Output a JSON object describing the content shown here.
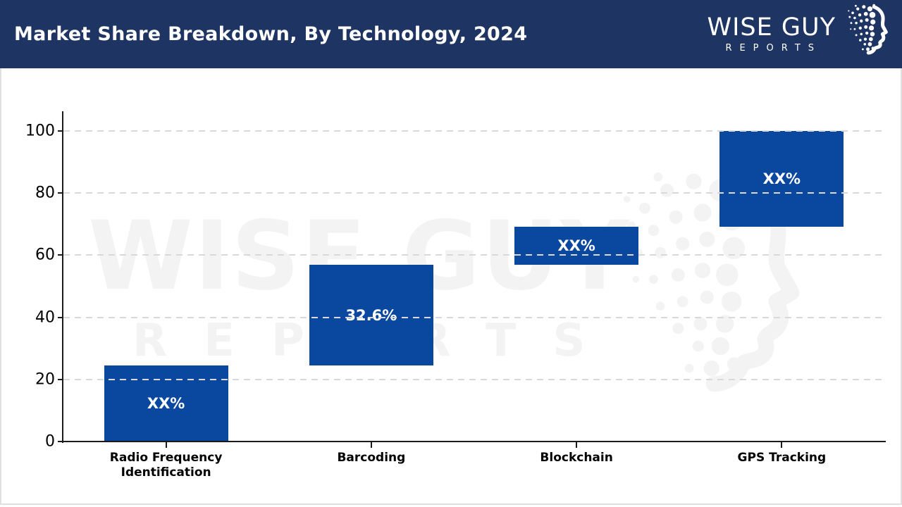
{
  "header": {
    "title": "Market Share Breakdown, By Technology, 2024",
    "logo": {
      "name": "WISE GUY",
      "sub": "REPORTS"
    }
  },
  "watermark": {
    "name": "WISE GUY",
    "sub": "REPORTS"
  },
  "colors": {
    "header_bg": "#1e3462",
    "bar": "#0a48a0",
    "bar_label": "#ffffff",
    "grid": "#d9d9d9",
    "axis": "#1a1a1a",
    "watermark": "#f3f3f3"
  },
  "chart_data": {
    "type": "bar",
    "variant": "waterfall",
    "title": "Market Share Breakdown, By Technology, 2024",
    "xlabel": "",
    "ylabel": "",
    "ylim": [
      0,
      106
    ],
    "yticks": [
      0,
      20,
      40,
      60,
      80,
      100
    ],
    "grid": true,
    "grid_style": "dashed",
    "legend": false,
    "categories": [
      "Radio Frequency\nIdentification",
      "Barcoding",
      "Blockchain",
      "GPS Tracking"
    ],
    "bars": [
      {
        "category": "Radio Frequency Identification",
        "start": 0,
        "end": 24.4,
        "value_label": "XX%"
      },
      {
        "category": "Barcoding",
        "start": 24.4,
        "end": 57.0,
        "value_label": "32.6%"
      },
      {
        "category": "Blockchain",
        "start": 57.0,
        "end": 69.2,
        "value_label": "XX%"
      },
      {
        "category": "GPS Tracking",
        "start": 69.2,
        "end": 100,
        "value_label": "XX%"
      }
    ]
  }
}
